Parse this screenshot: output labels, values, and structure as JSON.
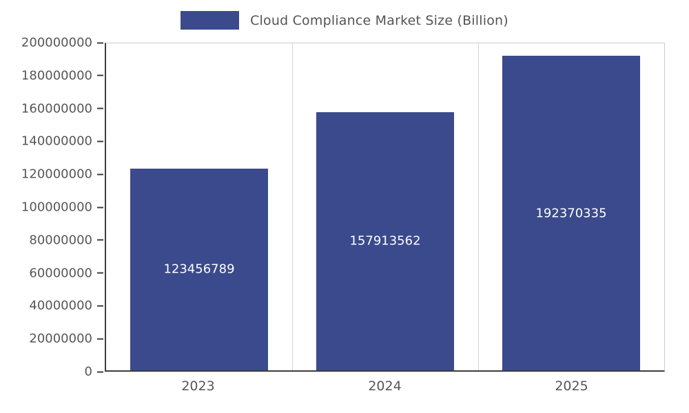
{
  "chart_data": {
    "type": "bar",
    "title": "Cloud Compliance Market Size (Billion)",
    "categories": [
      "2023",
      "2024",
      "2025"
    ],
    "values": [
      123456789,
      157913562,
      192370335
    ],
    "value_labels": [
      "123456789",
      "157913562",
      "192370335"
    ],
    "ylim": [
      0,
      200000000
    ],
    "ytick_step": 20000000,
    "ytick_labels": [
      "0",
      "20000000",
      "40000000",
      "60000000",
      "80000000",
      "100000000",
      "120000000",
      "140000000",
      "160000000",
      "180000000",
      "200000000"
    ],
    "xlabel": "",
    "ylabel": "",
    "grid": "vertical-category-separators",
    "legend_position": "top-center",
    "colors": {
      "bar": "#3b4a8c",
      "bar_value_label": "#ffffff",
      "axis_text": "#565656",
      "axis_line": "#3d3d3d",
      "grid_line": "#d4d4d4",
      "background": "#ffffff"
    }
  }
}
